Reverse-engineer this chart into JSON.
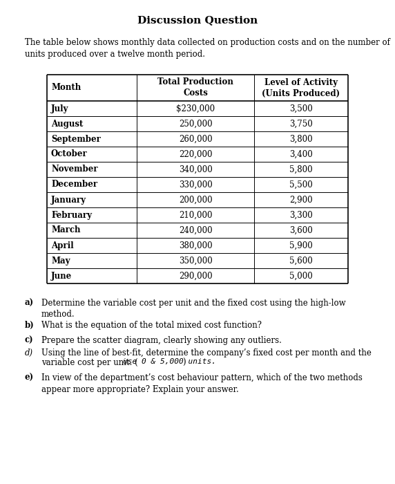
{
  "title": "Discussion Question",
  "intro_text": "The table below shows monthly data collected on production costs and on the number of\nunits produced over a twelve month period.",
  "table_headers": [
    "Month",
    "Total Production\nCosts",
    "Level of Activity\n(Units Produced)"
  ],
  "table_data": [
    [
      "July",
      "$230,000",
      "3,500"
    ],
    [
      "August",
      "250,000",
      "3,750"
    ],
    [
      "September",
      "260,000",
      "3,800"
    ],
    [
      "October",
      "220,000",
      "3,400"
    ],
    [
      "November",
      "340,000",
      "5,800"
    ],
    [
      "December",
      "330,000",
      "5,500"
    ],
    [
      "January",
      "200,000",
      "2,900"
    ],
    [
      "February",
      "210,000",
      "3,300"
    ],
    [
      "March",
      "240,000",
      "3,600"
    ],
    [
      "April",
      "380,000",
      "5,900"
    ],
    [
      "May",
      "350,000",
      "5,600"
    ],
    [
      "June",
      "290,000",
      "5,000"
    ]
  ],
  "q_a_label": "a)",
  "q_a_text": "Determine the variable cost per unit and the fixed cost using the high-low\nmethod.",
  "q_b_label": "b)",
  "q_b_text": "What is the equation of the total mixed cost function?",
  "q_c_label": "c)",
  "q_c_text": "Prepare the scatter diagram, clearly showing any outliers.",
  "q_d_label": "d)",
  "q_d_text1": "Using the line of best-fit, determine the company’s fixed cost per month and the",
  "q_d_text2_pre": "variable cost per unit. (",
  "q_d_text2_mono": "use 0 & 5,000 units.",
  "q_d_text2_post": ")",
  "q_e_label": "e)",
  "q_e_text": "In view of the department’s cost behaviour pattern, which of the two methods\nappear more appropriate? Explain your answer.",
  "bg_color": "#ffffff",
  "text_color": "#000000",
  "font_size_title": 11,
  "font_size_body": 8.5,
  "font_size_table": 8.5
}
